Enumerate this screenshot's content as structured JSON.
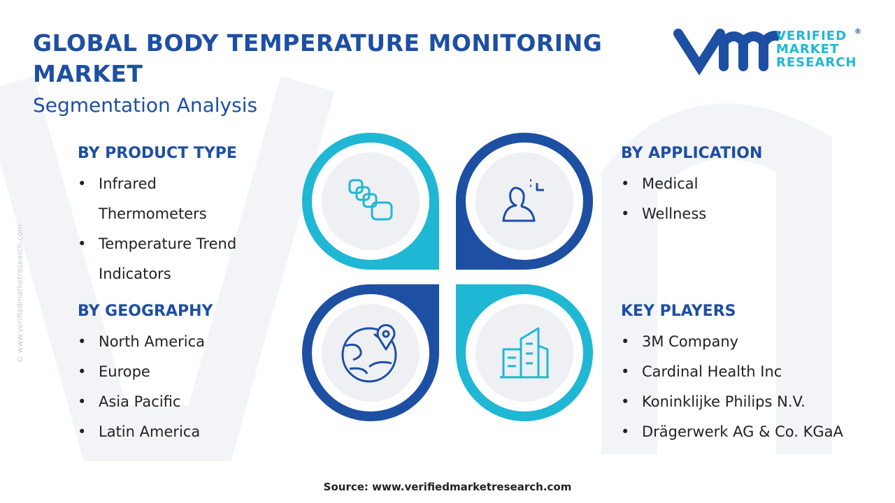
{
  "header": {
    "title": "GLOBAL BODY TEMPERATURE MONITORING MARKET",
    "subtitle": "Segmentation Analysis"
  },
  "logo": {
    "lines": [
      "VERIFIED",
      "MARKET",
      "RESEARCH"
    ],
    "mark": "®"
  },
  "watermark": "© www.verifiedmarketresearch.com",
  "segments": [
    {
      "title": "BY PRODUCT TYPE",
      "items": [
        "Infrared Thermometers",
        "Temperature Trend Indicators"
      ]
    },
    {
      "title": "BY APPLICATION",
      "items": [
        "Medical",
        "Wellness"
      ]
    },
    {
      "title": "BY GEOGRAPHY",
      "items": [
        "North America",
        "Europe",
        "Asia Pacific",
        "Latin America"
      ]
    },
    {
      "title": "KEY PLAYERS",
      "items": [
        "3M Company",
        "Cardinal Health Inc",
        "Koninklijke Philips N.V.",
        "Drägerwerk AG & Co. KGaA"
      ]
    }
  ],
  "source": "Source: www.verifiedmarketresearch.com"
}
